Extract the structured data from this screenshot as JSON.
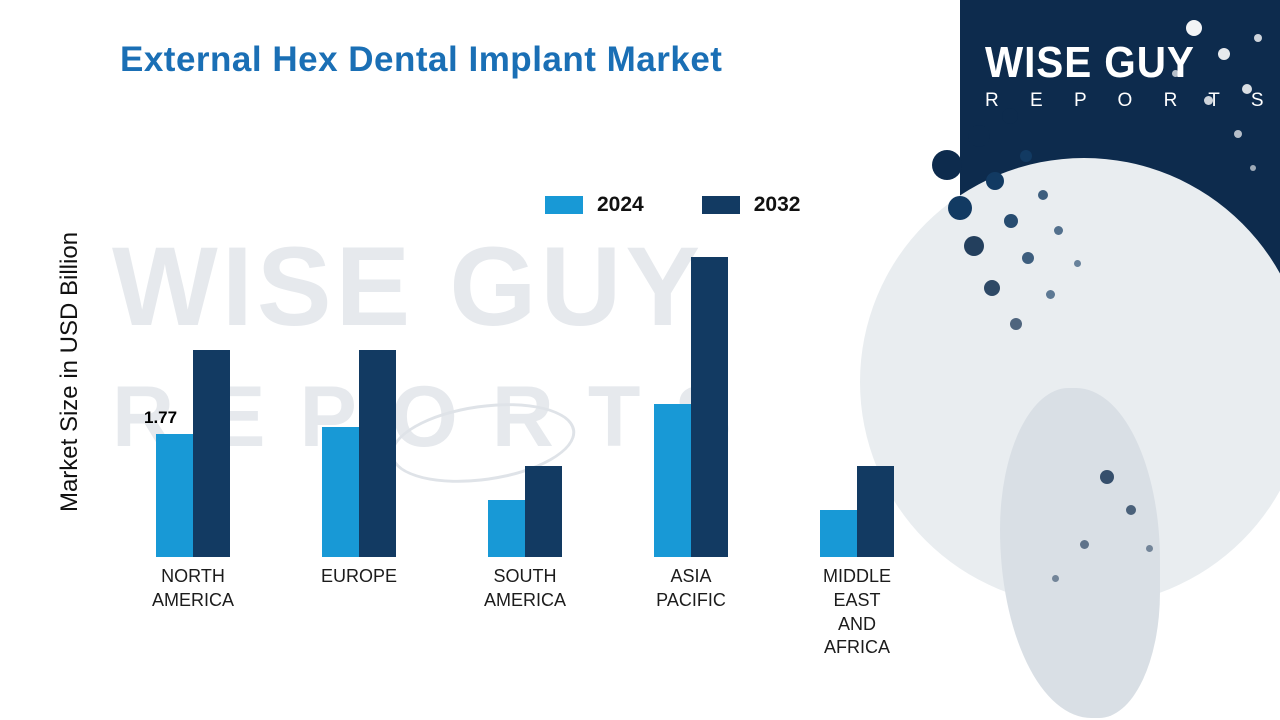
{
  "page": {
    "title": "External Hex Dental Implant Market"
  },
  "logo": {
    "line1": "WISE GUY",
    "line2": "R E P O R T S"
  },
  "watermark": {
    "line1": "WISE GUY",
    "line2": "REPORTS"
  },
  "colors": {
    "accent_blue": "#1a6fb5",
    "series_2024": "#1899d6",
    "series_2032": "#123a62",
    "navy_background": "#0d2b4d",
    "gray_circle": "#e9edf0",
    "watermark_gray": "#e6e9ed"
  },
  "chart_data": {
    "type": "bar",
    "title": "External Hex Dental Implant Market",
    "xlabel": "",
    "ylabel": "Market Size in USD Billion",
    "categories": [
      "NORTH AMERICA",
      "EUROPE",
      "SOUTH AMERICA",
      "ASIA PACIFIC",
      "MIDDLE EAST AND AFRICA"
    ],
    "label_lines": [
      [
        "NORTH",
        "AMERICA"
      ],
      [
        "EUROPE"
      ],
      [
        "SOUTH",
        "AMERICA"
      ],
      [
        "ASIA",
        "PACIFIC"
      ],
      [
        "MIDDLE",
        "EAST",
        "AND",
        "AFRICA"
      ]
    ],
    "series": [
      {
        "name": "2024",
        "color": "#1899d6",
        "values": [
          1.77,
          1.87,
          0.82,
          2.2,
          0.68
        ]
      },
      {
        "name": "2032",
        "color": "#123a62",
        "values": [
          2.98,
          2.98,
          1.31,
          4.33,
          1.31
        ]
      }
    ],
    "bar_labels": {
      "2024-0": "1.77"
    },
    "ylim": [
      0,
      4.5
    ],
    "grid": false,
    "legend_position": "top"
  }
}
